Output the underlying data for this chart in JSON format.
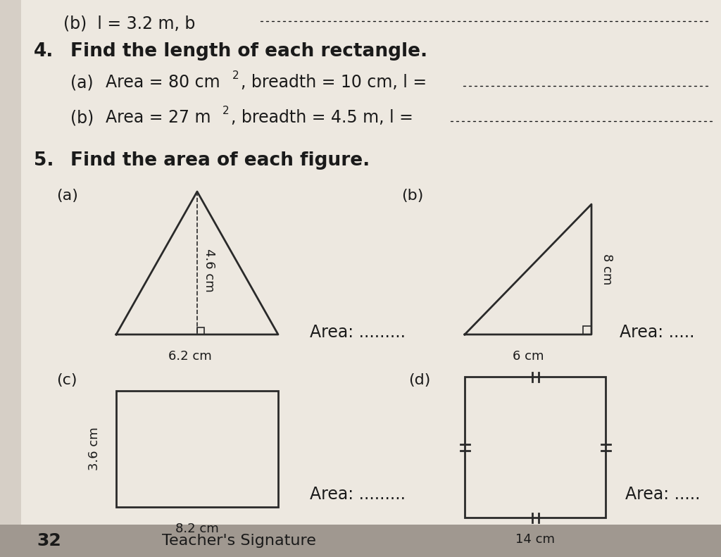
{
  "bg_color": "#c8bfb5",
  "page_bg": "#f0ebe3",
  "text_color": "#1a1a1a",
  "line_color": "#2a2a2a",
  "top_text_b": "(b)  l = 3.2 m, b",
  "q4_title": "Find the length of each rectangle.",
  "q4a_text": "(a)  Area = 80 cm², breadth = 10 cm, l = ",
  "q4b_text": "(b)  Area = 27 m², breadth = 4.5 m, l = ",
  "q5_title": "Find the area of each figure.",
  "area_dots_a": "Area: .........",
  "area_dots_b": "Area: .....",
  "area_dots_c": "Area: .........",
  "area_dots_d": "Area: .....",
  "footer_num": "32",
  "footer_text": "Teacher's Signature",
  "label_4_6": "4.6 cm",
  "label_6_2": "6.2 cm",
  "label_6": "6 cm",
  "label_8": "8 cm",
  "label_8_2": "8.2 cm",
  "label_3_6": "3.6 cm",
  "label_14": "14 cm"
}
